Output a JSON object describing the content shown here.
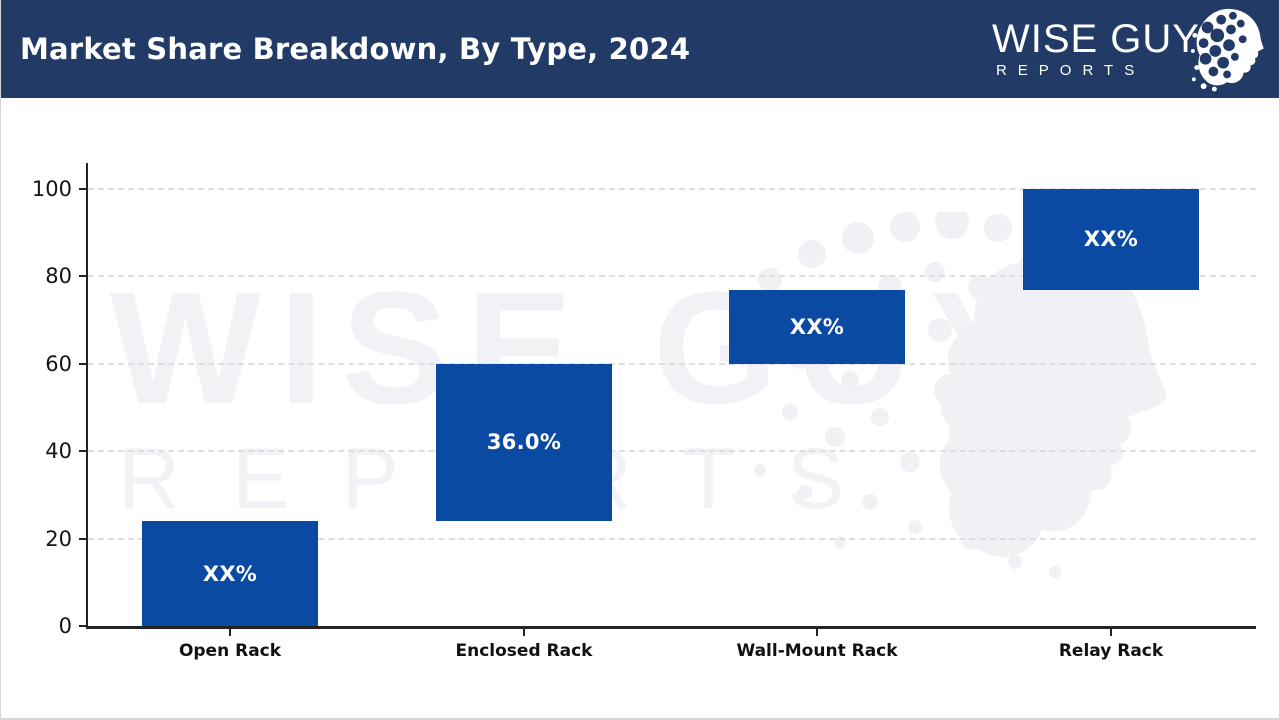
{
  "header": {
    "title": "Market Share Breakdown, By Type, 2024",
    "bg_color": "#213a66",
    "logo": {
      "line1": "WISE GUY",
      "line2": "REPORTS"
    }
  },
  "watermark": {
    "line1": "WISE GUY",
    "line2": "REPORTS"
  },
  "chart_data": {
    "type": "bar",
    "subtype": "waterfall-stacked-percentage",
    "title": "Market Share Breakdown, By Type, 2024",
    "categories": [
      "Open Rack",
      "Enclosed Rack",
      "Wall-Mount Rack",
      "Relay Rack"
    ],
    "series": [
      {
        "name": "Market share (%)",
        "segments": [
          {
            "category": "Open Rack",
            "start": 0,
            "end": 24,
            "value": 24,
            "value_label": "XX%"
          },
          {
            "category": "Enclosed Rack",
            "start": 24,
            "end": 60,
            "value": 36,
            "value_label": "36.0%"
          },
          {
            "category": "Wall-Mount Rack",
            "start": 60,
            "end": 77,
            "value": 17,
            "value_label": "XX%"
          },
          {
            "category": "Relay Rack",
            "start": 77,
            "end": 100,
            "value": 23,
            "value_label": "XX%"
          }
        ]
      }
    ],
    "values": [
      24,
      36,
      17,
      23
    ],
    "xlabel": "",
    "ylabel": "",
    "ylim": [
      0,
      106
    ],
    "yticks": [
      0,
      20,
      40,
      60,
      80,
      100
    ],
    "grid": "horizontal-dashed",
    "legend": "none",
    "bar_color": "#0b4aa2",
    "bar_label_color": "#ffffff",
    "axis_color": "#232323"
  }
}
